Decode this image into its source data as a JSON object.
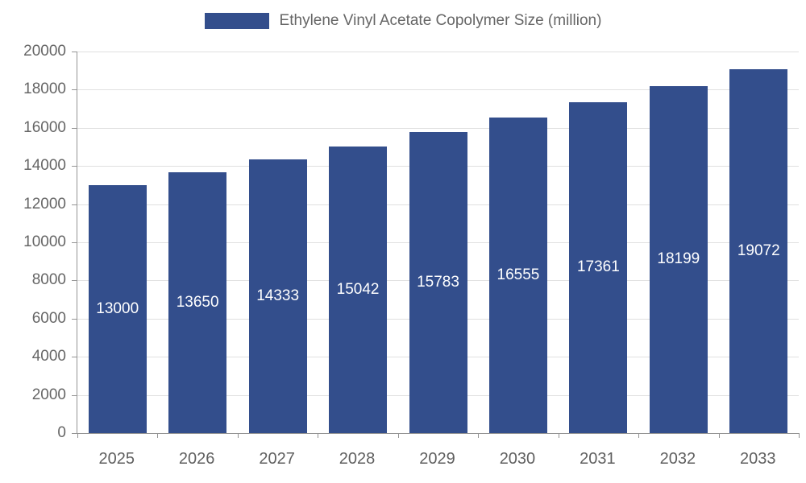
{
  "chart_data": {
    "type": "bar",
    "title": "Ethylene Vinyl Acetate Copolymer Size (million)",
    "categories": [
      "2025",
      "2026",
      "2027",
      "2028",
      "2029",
      "2030",
      "2031",
      "2032",
      "2033"
    ],
    "values": [
      13000,
      13650,
      14333,
      15042,
      15783,
      16555,
      17361,
      18199,
      19072
    ],
    "xlabel": "",
    "ylabel": "",
    "ylim": [
      0,
      20000
    ],
    "ytick_step": 2000,
    "grid": true,
    "legend_position": "top",
    "bar_color": "#334e8c",
    "value_label_color": "#ffffff",
    "grid_color": "#e0e0e0",
    "axis_color": "#949494",
    "tick_text_color": "#666666"
  }
}
